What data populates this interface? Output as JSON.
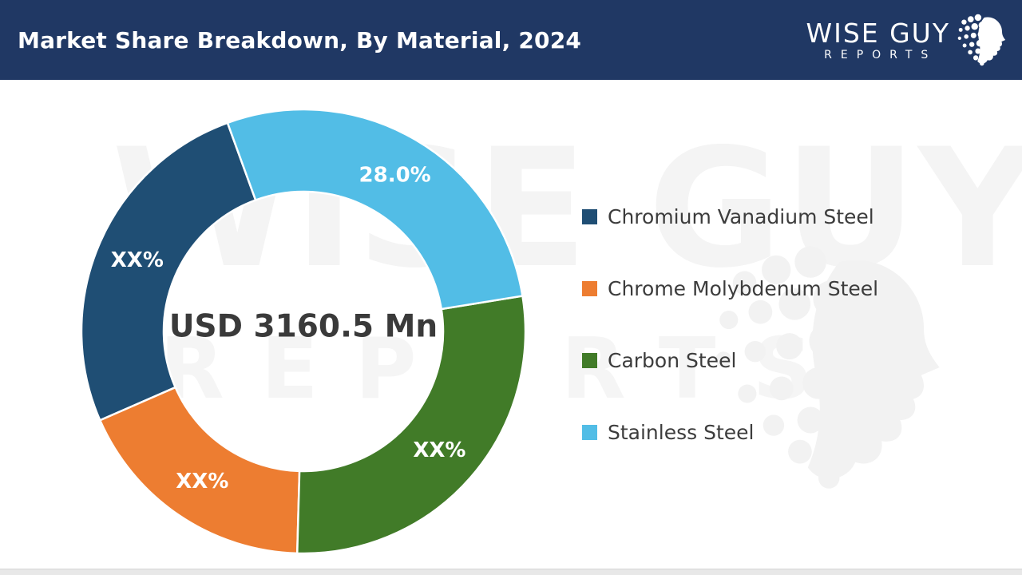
{
  "header": {
    "title": "Market Share Breakdown, By Material, 2024",
    "bg_color": "#203864",
    "logo": {
      "line1": "WISE GUY",
      "line2": "REPORTS"
    }
  },
  "watermark": {
    "line1": "WISE GUY",
    "line2": "REPORTS"
  },
  "chart_data": {
    "type": "pie",
    "subtype": "donut",
    "title": "Market Share Breakdown, By Material, 2024",
    "center_label": "USD 3160.5 Mn",
    "start_angle_deg": 110,
    "direction": "counterclockwise",
    "inner_radius_ratio": 0.63,
    "legend_position": "right",
    "segments": [
      {
        "name": "Chromium Vanadium Steel",
        "value_pct": 26,
        "display_label": "XX%",
        "color": "#1F4E74"
      },
      {
        "name": "Chrome Molybdenum Steel",
        "value_pct": 18,
        "display_label": "XX%",
        "color": "#ED7D31"
      },
      {
        "name": "Carbon Steel",
        "value_pct": 28,
        "display_label": "XX%",
        "color": "#417B28"
      },
      {
        "name": "Stainless Steel",
        "value_pct": 28,
        "display_label": "28.0%",
        "color": "#52BDE6"
      }
    ],
    "label_color": "#ffffff",
    "center_label_color": "#3a3a3a"
  }
}
